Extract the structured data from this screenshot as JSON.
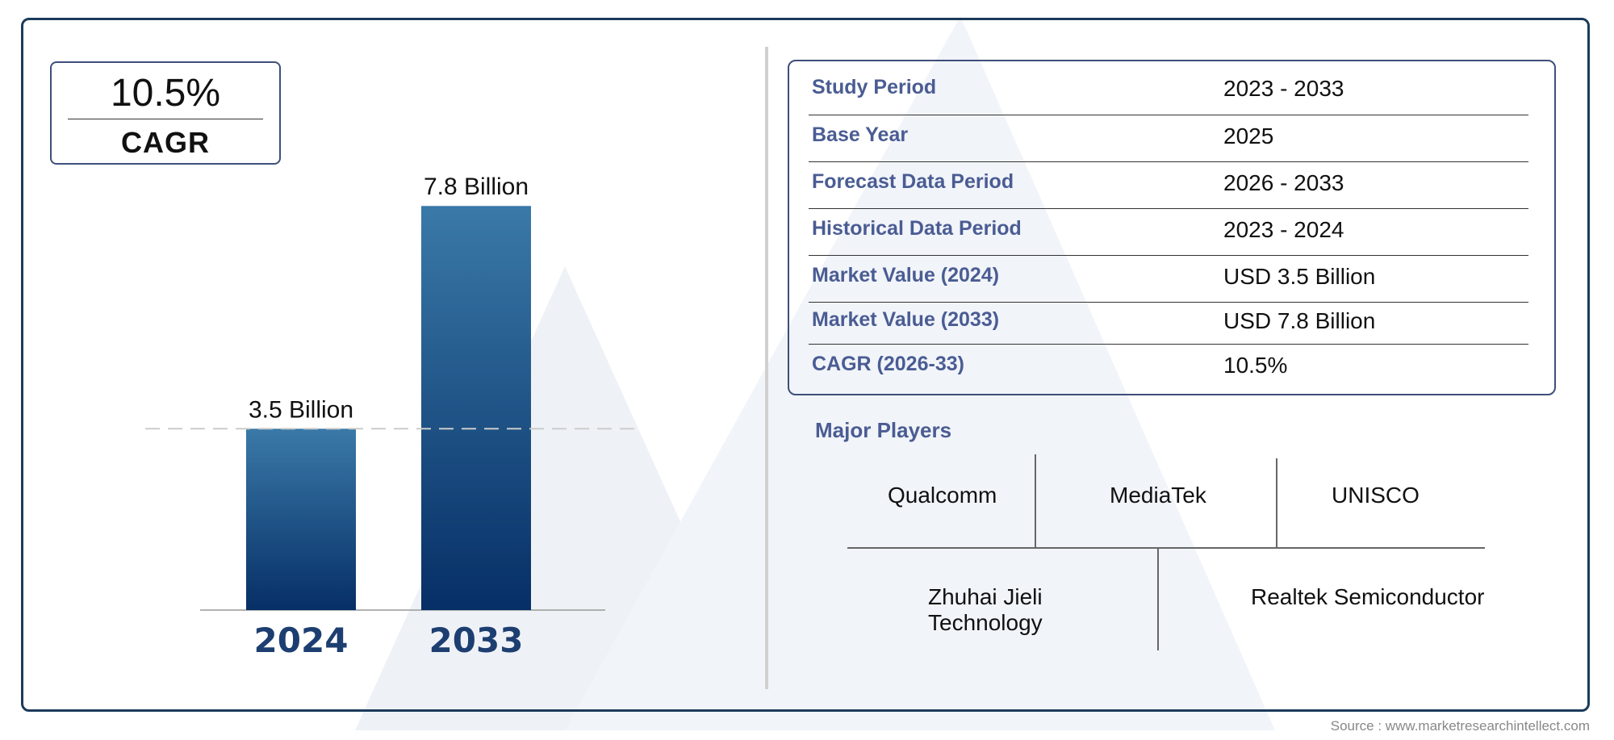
{
  "cagr_box": {
    "value": "10.5%",
    "label": "CAGR"
  },
  "chart_data": {
    "type": "bar",
    "categories": [
      "2024",
      "2033"
    ],
    "values": [
      3.5,
      7.8
    ],
    "data_labels": [
      "3.5 Billion",
      "7.8 Billion"
    ],
    "unit": "Billion",
    "reference_line": 3.5,
    "bar_color_top": "#3a79a8",
    "bar_color_bottom": "#062f66",
    "category_label_color": "#1d3e70"
  },
  "table": {
    "rows": [
      {
        "key": "Study Period",
        "value": "2023 - 2033"
      },
      {
        "key": "Base Year",
        "value": "2025"
      },
      {
        "key": "Forecast Data Period",
        "value": "2026 - 2033"
      },
      {
        "key": "Historical Data Period",
        "value": "2023 - 2024"
      },
      {
        "key": "Market Value (2024)",
        "value": "USD 3.5 Billion"
      },
      {
        "key": "Market Value (2033)",
        "value": "USD 7.8 Billion"
      },
      {
        "key": "CAGR (2026-33)",
        "value": "10.5%"
      }
    ]
  },
  "players": {
    "title": "Major Players",
    "items": [
      "Qualcomm",
      "MediaTek",
      "UNISCO",
      "Zhuhai Jieli Technology",
      "Realtek Semiconductor"
    ]
  },
  "source": "Source : www.marketresearchintellect.com",
  "colors": {
    "frame": "#1c3b5a",
    "key_text": "#4a5c93",
    "box_border": "#3e4f7a"
  }
}
